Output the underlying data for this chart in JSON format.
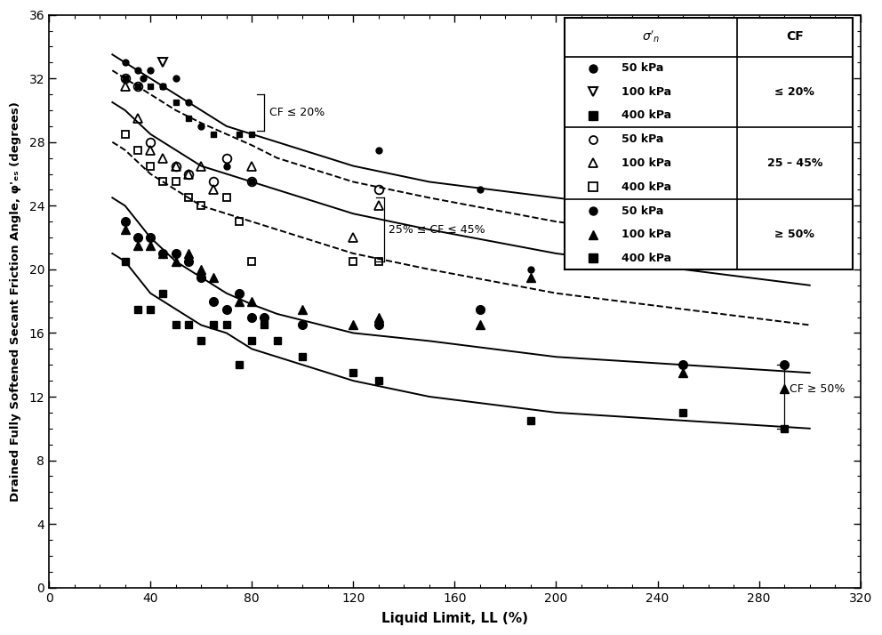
{
  "xlabel": "Liquid Limit, LL (%)",
  "ylabel": "Drained Fully Softened Secant Friction Angle, φ'ₑₛ (degrees)",
  "xlim": [
    0,
    320
  ],
  "ylim": [
    0,
    36
  ],
  "xticks": [
    0,
    40,
    80,
    120,
    160,
    200,
    240,
    280,
    320
  ],
  "yticks": [
    0,
    4,
    8,
    12,
    16,
    20,
    24,
    28,
    32,
    36
  ],
  "cf_le20_50kPa": {
    "x": [
      30,
      35,
      37,
      40,
      45,
      50,
      55,
      60,
      70,
      80,
      130,
      170,
      190
    ],
    "y": [
      33.0,
      32.5,
      32.0,
      32.5,
      31.5,
      32.0,
      30.5,
      29.0,
      26.5,
      25.5,
      27.5,
      25.0,
      20.0
    ]
  },
  "cf_le20_100kPa": {
    "x": [
      45
    ],
    "y": [
      33.0
    ]
  },
  "cf_le20_400kPa": {
    "x": [
      30,
      35,
      40,
      45,
      50,
      55,
      65,
      75,
      80
    ],
    "y": [
      32.0,
      31.5,
      31.5,
      31.5,
      30.5,
      29.5,
      28.5,
      28.5,
      28.5
    ]
  },
  "cf_2545_50kPa": {
    "x": [
      30,
      35,
      40,
      50,
      55,
      65,
      70,
      80,
      130
    ],
    "y": [
      32.0,
      31.5,
      28.0,
      26.5,
      26.0,
      25.5,
      27.0,
      25.5,
      25.0
    ]
  },
  "cf_2545_100kPa": {
    "x": [
      30,
      35,
      40,
      45,
      50,
      55,
      60,
      65,
      80,
      120,
      130
    ],
    "y": [
      31.5,
      29.5,
      27.5,
      27.0,
      26.5,
      26.0,
      26.5,
      25.0,
      26.5,
      22.0,
      24.0
    ]
  },
  "cf_2545_400kPa": {
    "x": [
      30,
      35,
      40,
      45,
      50,
      55,
      60,
      70,
      75,
      80,
      120,
      130
    ],
    "y": [
      28.5,
      27.5,
      26.5,
      25.5,
      25.5,
      24.5,
      24.0,
      24.5,
      23.0,
      20.5,
      20.5,
      20.5
    ]
  },
  "cf_ge50_50kPa": {
    "x": [
      30,
      35,
      40,
      45,
      50,
      55,
      60,
      65,
      70,
      75,
      80,
      85,
      100,
      130,
      170,
      250,
      290
    ],
    "y": [
      23.0,
      22.0,
      22.0,
      21.0,
      21.0,
      20.5,
      19.5,
      18.0,
      17.5,
      18.5,
      17.0,
      17.0,
      16.5,
      16.5,
      17.5,
      14.0,
      14.0
    ]
  },
  "cf_ge50_100kPa": {
    "x": [
      30,
      35,
      40,
      45,
      50,
      55,
      60,
      65,
      75,
      80,
      100,
      120,
      130,
      170,
      190,
      250,
      290
    ],
    "y": [
      22.5,
      21.5,
      21.5,
      21.0,
      20.5,
      21.0,
      20.0,
      19.5,
      18.0,
      18.0,
      17.5,
      16.5,
      17.0,
      16.5,
      19.5,
      13.5,
      12.5
    ]
  },
  "cf_ge50_400kPa": {
    "x": [
      30,
      35,
      40,
      45,
      50,
      55,
      60,
      65,
      70,
      75,
      80,
      85,
      90,
      100,
      120,
      130,
      190,
      250,
      290
    ],
    "y": [
      20.5,
      17.5,
      17.5,
      18.5,
      16.5,
      16.5,
      15.5,
      16.5,
      16.5,
      14.0,
      15.5,
      16.5,
      15.5,
      14.5,
      13.5,
      13.0,
      10.5,
      11.0,
      10.0
    ]
  },
  "curve_le20_upper_x": [
    25,
    30,
    40,
    50,
    60,
    70,
    80,
    90,
    100,
    120,
    150,
    200,
    250,
    300
  ],
  "curve_le20_upper_y": [
    33.5,
    33.0,
    32.0,
    31.0,
    30.0,
    29.0,
    28.5,
    28.0,
    27.5,
    26.5,
    25.5,
    24.5,
    23.5,
    22.5
  ],
  "curve_le20_lower_x": [
    25,
    30,
    40,
    50,
    60,
    70,
    80,
    90,
    100,
    120,
    150,
    200,
    250,
    300
  ],
  "curve_le20_lower_y": [
    32.5,
    32.0,
    31.0,
    30.0,
    29.2,
    28.5,
    27.8,
    27.0,
    26.5,
    25.5,
    24.5,
    23.0,
    22.0,
    21.0
  ],
  "curve_2545_upper_x": [
    25,
    30,
    40,
    50,
    60,
    70,
    80,
    90,
    100,
    120,
    150,
    200,
    250,
    300
  ],
  "curve_2545_upper_y": [
    30.5,
    30.0,
    28.5,
    27.5,
    26.5,
    26.0,
    25.5,
    25.0,
    24.5,
    23.5,
    22.5,
    21.0,
    20.0,
    19.0
  ],
  "curve_2545_lower_x": [
    25,
    30,
    40,
    50,
    60,
    70,
    80,
    90,
    100,
    120,
    150,
    200,
    250,
    300
  ],
  "curve_2545_lower_y": [
    28.0,
    27.5,
    26.0,
    25.0,
    24.0,
    23.5,
    23.0,
    22.5,
    22.0,
    21.0,
    20.0,
    18.5,
    17.5,
    16.5
  ],
  "curve_ge50_upper_x": [
    25,
    30,
    40,
    50,
    60,
    70,
    80,
    90,
    100,
    120,
    150,
    200,
    250,
    300
  ],
  "curve_ge50_upper_y": [
    24.5,
    24.0,
    22.0,
    20.5,
    19.5,
    18.5,
    17.8,
    17.2,
    16.8,
    16.0,
    15.5,
    14.5,
    14.0,
    13.5
  ],
  "curve_ge50_lower_x": [
    25,
    30,
    40,
    50,
    60,
    70,
    80,
    90,
    100,
    120,
    150,
    200,
    250,
    300
  ],
  "curve_ge50_lower_y": [
    21.0,
    20.5,
    18.5,
    17.5,
    16.5,
    16.0,
    15.0,
    14.5,
    14.0,
    13.0,
    12.0,
    11.0,
    10.5,
    10.0
  ]
}
